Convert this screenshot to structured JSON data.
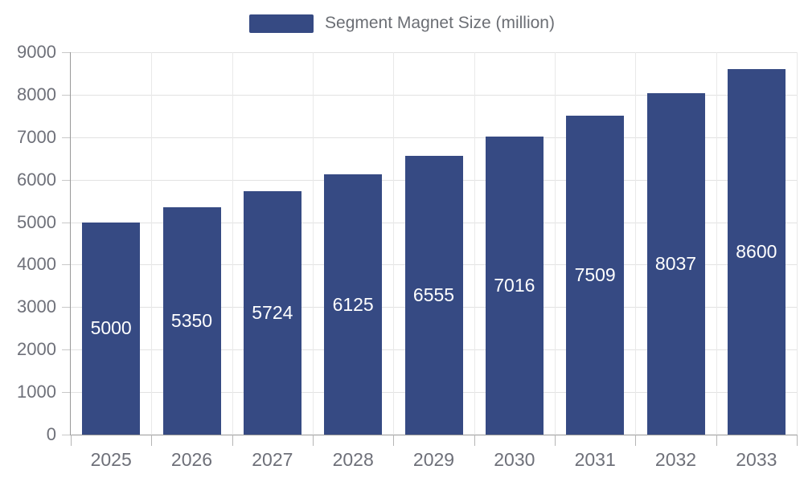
{
  "chart_data": {
    "type": "bar",
    "title": "Segment Magnet Size (million)",
    "categories": [
      "2025",
      "2026",
      "2027",
      "2028",
      "2029",
      "2030",
      "2031",
      "2032",
      "2033"
    ],
    "series": [
      {
        "name": "Segment Magnet Size (million)",
        "values": [
          5000,
          5350,
          5724,
          6125,
          6555,
          7016,
          7509,
          8037,
          8600
        ]
      }
    ],
    "xlabel": "",
    "ylabel": "",
    "ylim": [
      0,
      9000
    ],
    "yticks": [
      0,
      1000,
      2000,
      3000,
      4000,
      5000,
      6000,
      7000,
      8000,
      9000
    ],
    "grid": true,
    "legend_position": "top-center",
    "bar_color": "#364a83",
    "bar_label_color": "#ffffff",
    "axis_text_color": "#6e7079",
    "legend_text_color": "#6b6e74",
    "axis_line_color": "#999999",
    "grid_color": "#e2e2e2"
  },
  "legend": {
    "label": "Segment Magnet Size (million)"
  }
}
